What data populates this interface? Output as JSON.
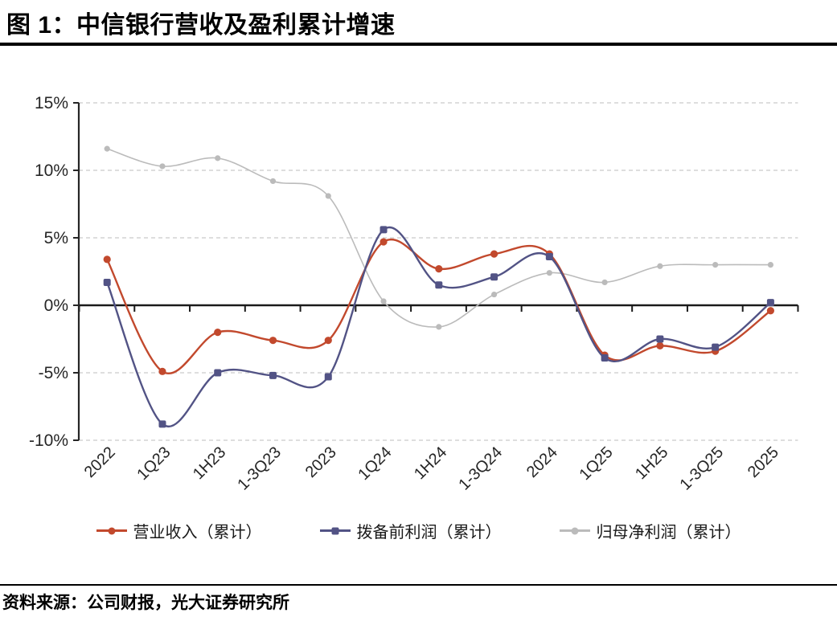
{
  "header": {
    "title": "图 1：中信银行营收及盈利累计增速"
  },
  "footer": {
    "source": "资料来源：公司财报，光大证券研究所"
  },
  "chart_data": {
    "type": "line",
    "title": "中信银行营收及盈利累计增速",
    "categories": [
      "2022",
      "1Q23",
      "1H23",
      "1-3Q23",
      "2023",
      "1Q24",
      "1H24",
      "1-3Q24",
      "2024",
      "1Q25",
      "1H25",
      "1-3Q25",
      "2025"
    ],
    "y_tick_labels": [
      "15%",
      "10%",
      "5%",
      "0%",
      "-5%",
      "-10%"
    ],
    "y_tick_values": [
      15,
      10,
      5,
      0,
      -5,
      -10
    ],
    "ylim": [
      -10,
      15
    ],
    "unit": "%",
    "grid": "horizontal-dashed",
    "legend_position": "bottom",
    "line_style": "smooth",
    "series": [
      {
        "name": "营业收入（累计）",
        "color": "#C2492D",
        "marker": "circle",
        "values": [
          3.4,
          -4.9,
          -2.0,
          -2.6,
          -2.6,
          4.7,
          2.7,
          3.8,
          3.8,
          -3.7,
          -3.0,
          -3.4,
          -0.4
        ]
      },
      {
        "name": "拨备前利润（累计）",
        "color": "#525385",
        "marker": "square",
        "values": [
          1.7,
          -8.8,
          -5.0,
          -5.2,
          -5.3,
          5.6,
          1.5,
          2.1,
          3.6,
          -3.9,
          -2.5,
          -3.1,
          0.2
        ]
      },
      {
        "name": "归母净利润（累计）",
        "color": "#BBBBBB",
        "marker": "circle",
        "values": [
          11.6,
          10.3,
          10.9,
          9.2,
          8.1,
          0.3,
          -1.6,
          0.8,
          2.4,
          1.7,
          2.9,
          3.0,
          3.0
        ]
      }
    ]
  }
}
